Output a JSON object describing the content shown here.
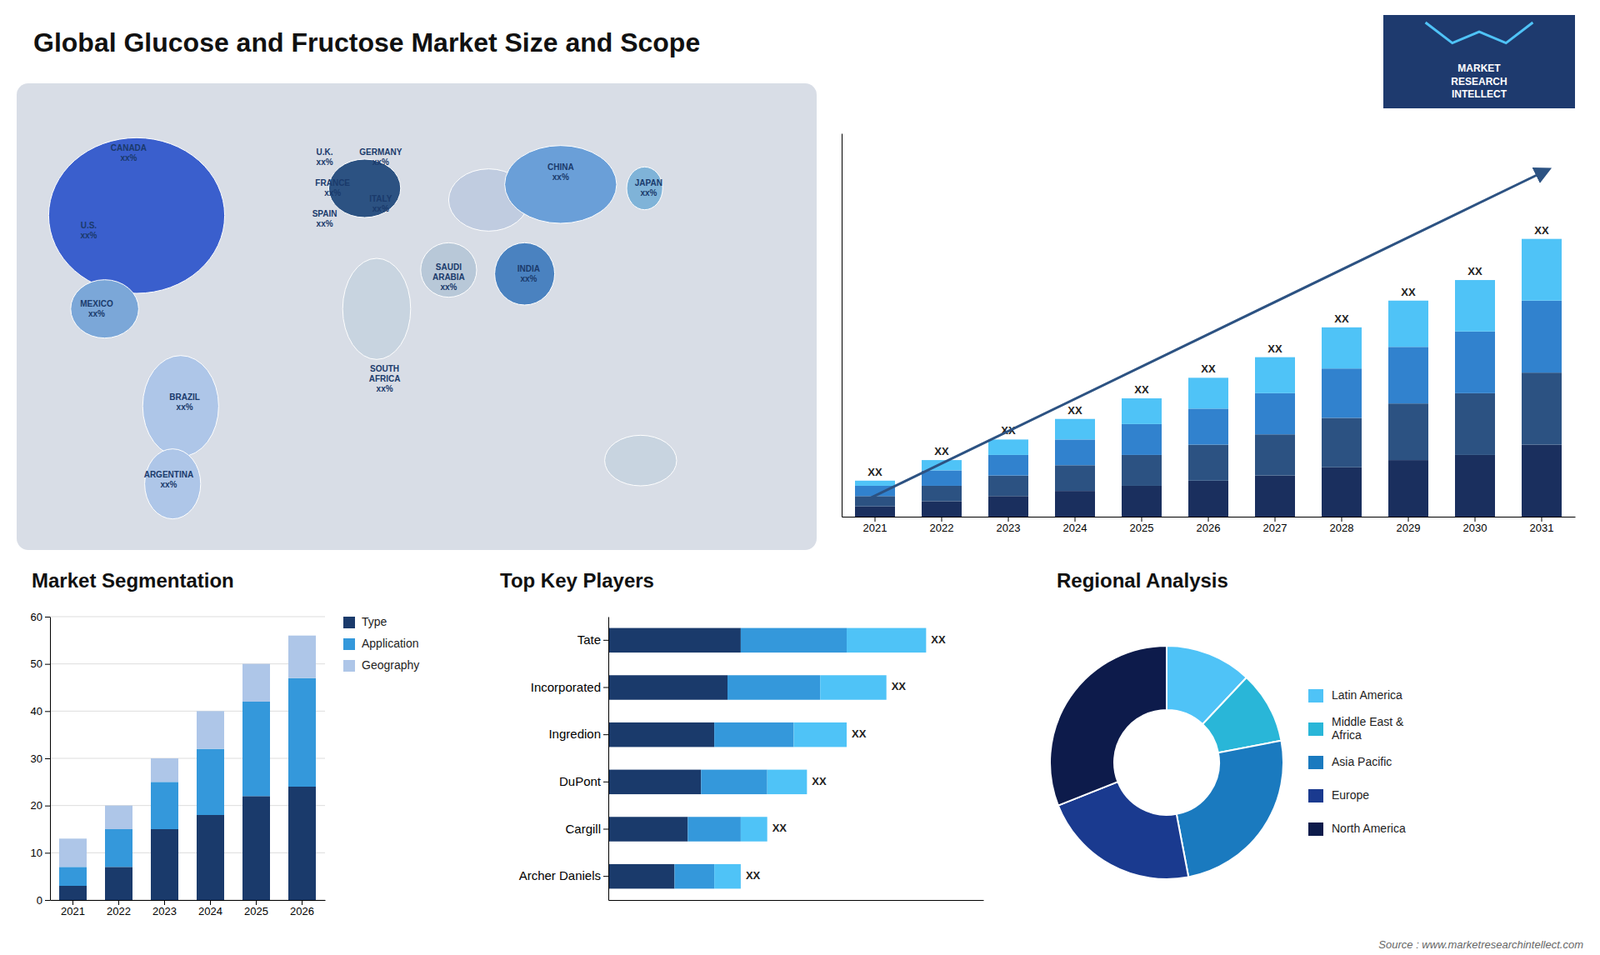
{
  "chart_data": [
    {
      "type": "map",
      "title": "Global Glucose and Fructose Market Size and Scope",
      "annotations": [
        "CANADA\nxx%",
        "U.S.\nxx%",
        "MEXICO\nxx%",
        "BRAZIL\nxx%",
        "ARGENTINA\nxx%",
        "U.K.\nxx%",
        "FRANCE\nxx%",
        "SPAIN\nxx%",
        "GERMANY\nxx%",
        "ITALY\nxx%",
        "SAUDI\nARABIA\nxx%",
        "SOUTH\nAFRICA\nxx%",
        "CHINA\nxx%",
        "INDIA\nxx%",
        "JAPAN\nxx%"
      ]
    },
    {
      "type": "bar",
      "stacked": true,
      "categories": [
        "2021",
        "2022",
        "2023",
        "2024",
        "2025",
        "2026",
        "2027",
        "2028",
        "2029",
        "2030",
        "2031"
      ],
      "series": [
        {
          "color": "#1a2f5e",
          "values": [
            1,
            1.5,
            2,
            2.5,
            3,
            3.5,
            4,
            4.8,
            5.5,
            6,
            7
          ]
        },
        {
          "color": "#2c5282",
          "values": [
            1,
            1.5,
            2,
            2.5,
            3,
            3.5,
            4,
            4.8,
            5.5,
            6,
            7
          ]
        },
        {
          "color": "#3182ce",
          "values": [
            1,
            1.5,
            2,
            2.5,
            3,
            3.5,
            4,
            4.8,
            5.5,
            6,
            7
          ]
        },
        {
          "color": "#4fc3f7",
          "values": [
            0.5,
            1,
            1.5,
            2,
            2.5,
            3,
            3.5,
            4,
            4.5,
            5,
            6
          ]
        }
      ],
      "ylim": [
        0,
        37.26
      ],
      "tick_labels": "x",
      "annotations": [
        "XX"
      ]
    },
    {
      "type": "bar",
      "title": "Market Segmentation",
      "stacked": true,
      "categories": [
        "2021",
        "2022",
        "2023",
        "2024",
        "2025",
        "2026"
      ],
      "series": [
        {
          "name": "Type",
          "color": "#1a3a6b",
          "values": [
            3,
            7,
            15,
            18,
            22,
            24
          ]
        },
        {
          "name": "Application",
          "color": "#3498db",
          "values": [
            4,
            8,
            10,
            14,
            20,
            23
          ]
        },
        {
          "name": "Geography",
          "color": "#aec6e8",
          "values": [
            6,
            5,
            5,
            8,
            8,
            9
          ]
        }
      ],
      "ylim": [
        0,
        60
      ],
      "yticks": [
        0,
        10,
        20,
        30,
        40,
        50,
        60
      ],
      "grid": true,
      "legend": "right"
    },
    {
      "type": "bar",
      "title": "Top Key Players",
      "orientation": "horizontal",
      "stacked": true,
      "categories": [
        "Tate",
        "Incorporated",
        "Ingredion",
        "DuPont",
        "Cargill",
        "Archer Daniels"
      ],
      "series": [
        {
          "color": "#1a3a6b",
          "values": [
            5,
            4.5,
            4,
            3.5,
            3,
            2.5
          ]
        },
        {
          "color": "#3498db",
          "values": [
            4,
            3.5,
            3,
            2.5,
            2,
            1.5
          ]
        },
        {
          "color": "#4fc3f7",
          "values": [
            3,
            2.5,
            2,
            1.5,
            1,
            1
          ]
        }
      ],
      "xlim": [
        0,
        14.16
      ],
      "tick_labels": "y",
      "annotations": [
        "XX"
      ]
    },
    {
      "type": "pie",
      "title": "Regional Analysis",
      "categories": [
        "Latin America",
        "Middle East &\nAfrica",
        "Asia Pacific",
        "Europe",
        "North America"
      ],
      "values": [
        12,
        10,
        25,
        22,
        31
      ],
      "colors": [
        "#4fc3f7",
        "#29b6d8",
        "#1a7abf",
        "#1a3a8f",
        "#0d1b4b"
      ],
      "legend": "right"
    },
    {
      "type": "logo",
      "annotations": [
        "MARKET",
        "RESEARCH",
        "INTELLECT"
      ]
    },
    {
      "type": "note",
      "annotations": [
        "Source : www.marketresearchintellect.com"
      ]
    }
  ]
}
